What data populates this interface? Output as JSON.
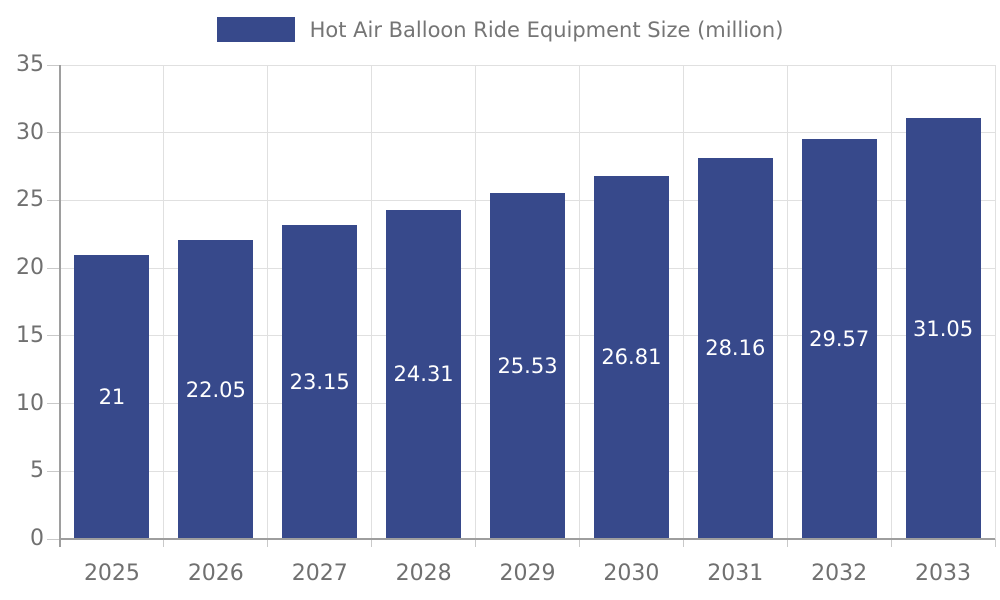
{
  "chart_data": {
    "type": "bar",
    "title": "Hot Air Balloon Ride Equipment Size (million)",
    "legend": {
      "position": "top",
      "label": "Hot Air Balloon Ride Equipment Size (million)"
    },
    "categories": [
      "2025",
      "2026",
      "2027",
      "2028",
      "2029",
      "2030",
      "2031",
      "2032",
      "2033"
    ],
    "series": [
      {
        "name": "Hot Air Balloon Ride Equipment Size (million)",
        "values": [
          21,
          22.05,
          23.15,
          24.31,
          25.53,
          26.81,
          28.16,
          29.57,
          31.05
        ]
      }
    ],
    "bar_labels": [
      "21",
      "22.05",
      "23.15",
      "24.31",
      "25.53",
      "26.81",
      "28.16",
      "29.57",
      "31.05"
    ],
    "xlabel": "",
    "ylabel": "",
    "ylim": [
      0,
      35
    ],
    "yticks": [
      0,
      5,
      10,
      15,
      20,
      25,
      30,
      35
    ],
    "grid": true,
    "colors": {
      "bar": "#37498B",
      "grid": "#e0e0e0",
      "axis": "#9e9e9e",
      "tick": "#c9c9c9",
      "tick_label": "#707070",
      "legend_text": "#757575",
      "bar_label": "#ffffff",
      "background": "#ffffff"
    }
  }
}
